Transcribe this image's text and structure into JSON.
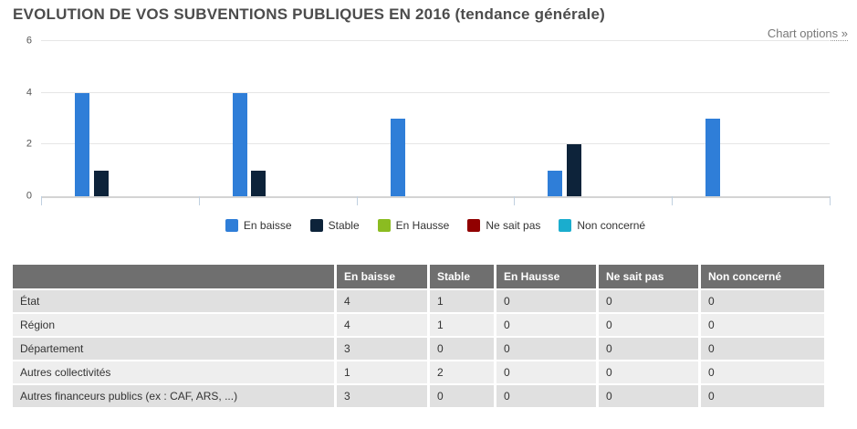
{
  "title": "EVOLUTION DE VOS SUBVENTIONS PUBLIQUES EN 2016 (tendance générale)",
  "chart_options_label": "Chart options »",
  "ui_colors": {
    "table_header_bg": "#6f6f6f",
    "table_header_text": "#ffffff",
    "row_dark": "#e0e0e0",
    "row_light": "#eeeeee",
    "gridline": "#e6e6e6",
    "axis_line": "#d4d4d4",
    "tick": "#c0d0e0",
    "link": "#787878"
  },
  "chart_data": {
    "type": "bar",
    "title": "EVOLUTION DE VOS SUBVENTIONS PUBLIQUES EN 2016 (tendance générale)",
    "categories": [
      "État",
      "Région",
      "Département",
      "Autres collectivités",
      "Autres financeurs publics (ex : CAF, ARS, ...)"
    ],
    "series": [
      {
        "name": "En baisse",
        "color": "#2f7ed8",
        "values": [
          4,
          4,
          3,
          1,
          3
        ]
      },
      {
        "name": "Stable",
        "color": "#0d233a",
        "values": [
          1,
          1,
          0,
          2,
          0
        ]
      },
      {
        "name": "En Hausse",
        "color": "#8bbc21",
        "values": [
          0,
          0,
          0,
          0,
          0
        ]
      },
      {
        "name": "Ne sait pas",
        "color": "#910000",
        "values": [
          0,
          0,
          0,
          0,
          0
        ]
      },
      {
        "name": "Non concerné",
        "color": "#1aadce",
        "values": [
          0,
          0,
          0,
          0,
          0
        ]
      }
    ],
    "xlabel": "",
    "ylabel": "",
    "ylim": [
      0,
      6
    ],
    "yticks": [
      0,
      2,
      4,
      6
    ],
    "grid": true,
    "x_tick_labels_visible": false,
    "legend_position": "bottom"
  },
  "table": {
    "columns": [
      "",
      "En baisse",
      "Stable",
      "En Hausse",
      "Ne sait pas",
      "Non concerné"
    ],
    "rows": [
      {
        "label": "État",
        "values": [
          4,
          1,
          0,
          0,
          0
        ]
      },
      {
        "label": "Région",
        "values": [
          4,
          1,
          0,
          0,
          0
        ]
      },
      {
        "label": "Département",
        "values": [
          3,
          0,
          0,
          0,
          0
        ]
      },
      {
        "label": "Autres collectivités",
        "values": [
          1,
          2,
          0,
          0,
          0
        ]
      },
      {
        "label": "Autres financeurs publics (ex : CAF, ARS, ...)",
        "values": [
          3,
          0,
          0,
          0,
          0
        ]
      }
    ]
  }
}
